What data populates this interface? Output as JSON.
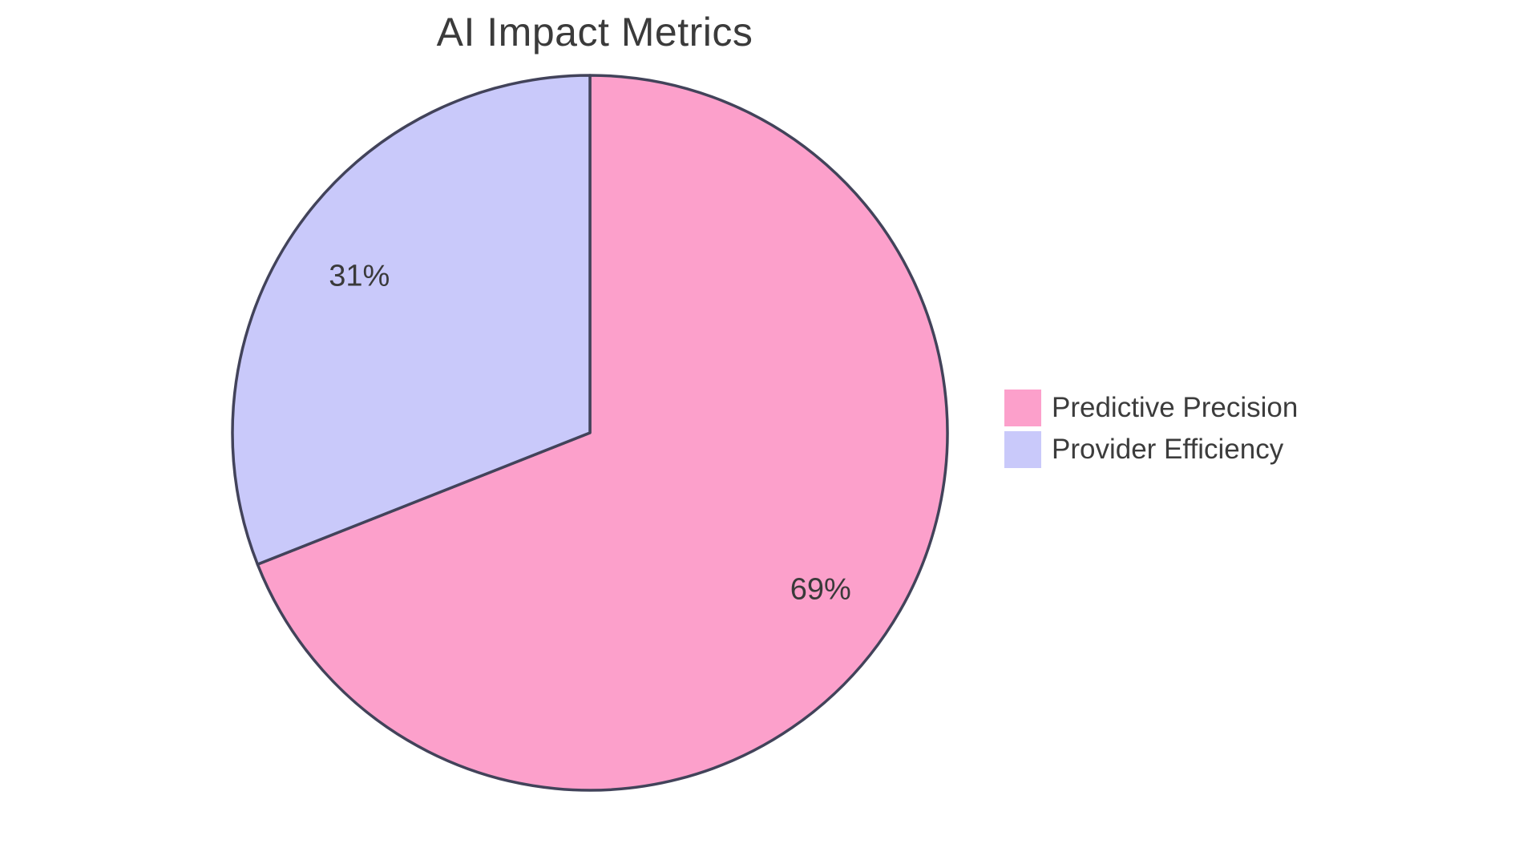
{
  "chart_data": {
    "type": "pie",
    "title": "AI Impact Metrics",
    "categories": [
      "Predictive Precision",
      "Provider Efficiency"
    ],
    "values": [
      69,
      31
    ],
    "slices": [
      {
        "label": "Predictive Precision",
        "value": 69,
        "pct_label": "69%",
        "color": "#FCA0CB"
      },
      {
        "label": "Provider Efficiency",
        "value": 31,
        "pct_label": "31%",
        "color": "#C9C9FA"
      }
    ],
    "start_angle_deg": -90,
    "direction": "clockwise",
    "slice_stroke_color": "#42435A",
    "slice_stroke_width": 3.5,
    "pct_label_color": "#3A3A3A",
    "pct_label_font_size": 38,
    "pct_label_radius_fraction": 0.78,
    "title_color": "#3B3B3B",
    "background_color": "#FFFFFF",
    "legend": {
      "position": "right",
      "text_color": "#3C3C3C"
    }
  }
}
